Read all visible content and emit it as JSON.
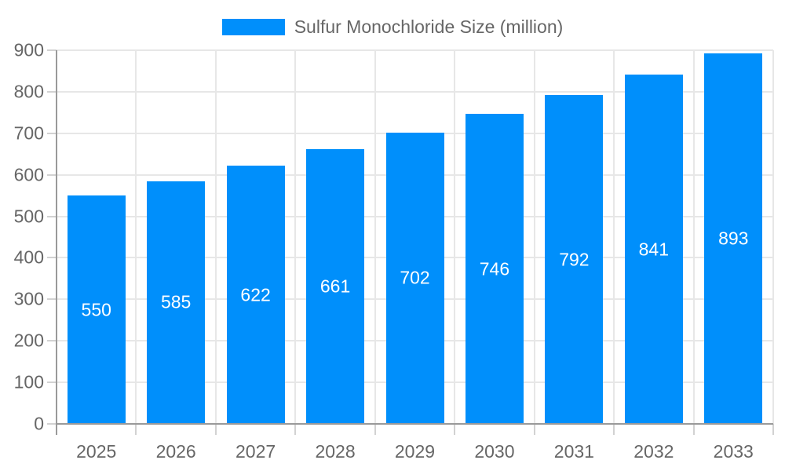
{
  "chart_data": {
    "type": "bar",
    "title": "Sulfur Monochloride Size (million)",
    "legend": {
      "label": "Sulfur Monochloride Size (million)",
      "position": "top",
      "marker": "rect"
    },
    "categories": [
      "2025",
      "2026",
      "2027",
      "2028",
      "2029",
      "2030",
      "2031",
      "2032",
      "2033"
    ],
    "values": [
      550,
      585,
      622,
      661,
      702,
      746,
      792,
      841,
      893
    ],
    "series": [
      {
        "name": "Sulfur Monochloride Size (million)",
        "values": [
          550,
          585,
          622,
          661,
          702,
          746,
          792,
          841,
          893
        ]
      }
    ],
    "xlabel": "",
    "ylabel": "",
    "ylim": [
      0,
      900
    ],
    "ytick_step": 100,
    "yticks": [
      0,
      100,
      200,
      300,
      400,
      500,
      600,
      700,
      800,
      900
    ],
    "grid": true,
    "value_label_position": "inside-center",
    "colors": {
      "bar": "#008FFB",
      "axis": "#9a9a9a",
      "grid": "#e7e7e7",
      "tick": "#d2d2d2",
      "axis_label": "#666666",
      "value_label": "#ffffff",
      "legend_text": "#666666",
      "background": "#ffffff"
    }
  }
}
